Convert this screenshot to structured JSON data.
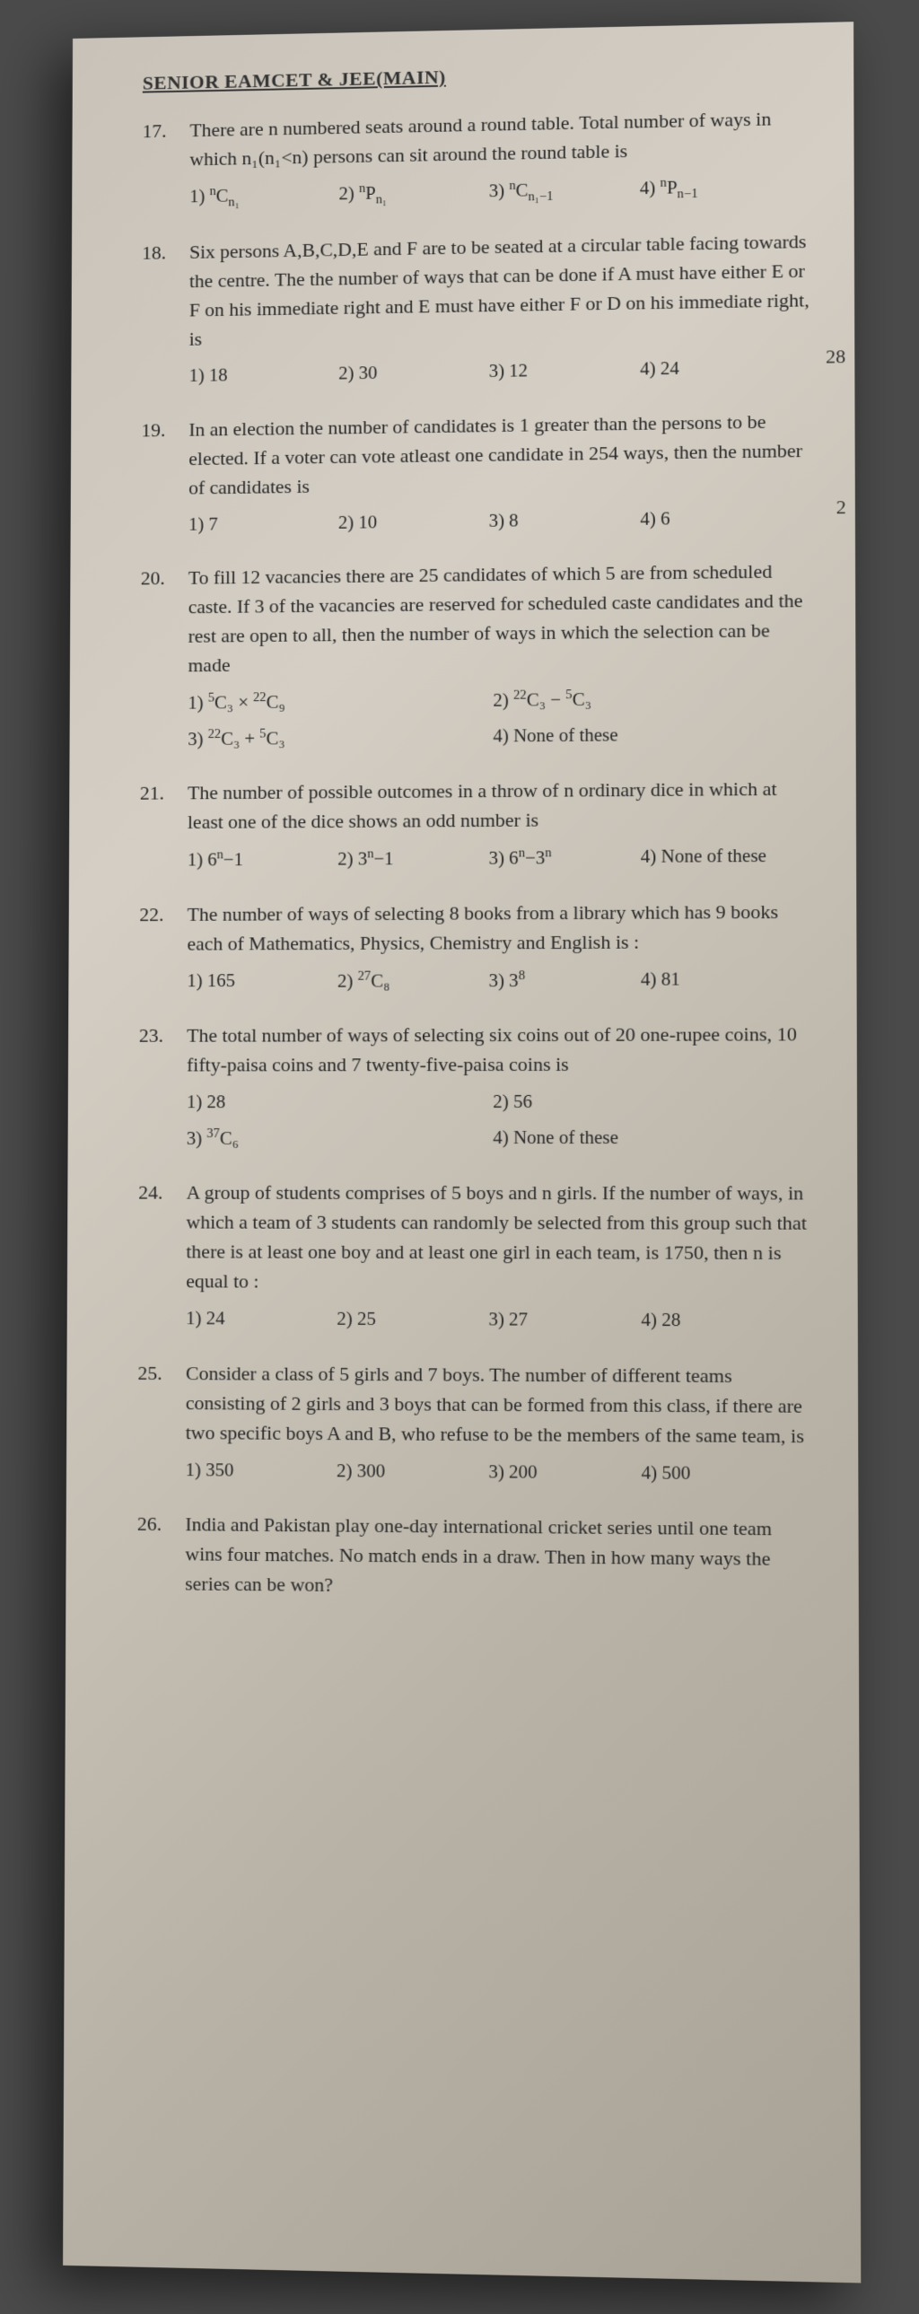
{
  "header": "SENIOR EAMCET & JEE(MAIN)",
  "questions": [
    {
      "num": "17.",
      "text": "There are n numbered seats around a round table. Total number of ways in which n₁(n₁<n) persons can sit around the round table is",
      "options": [
        {
          "n": "1)",
          "v": "<sup>n</sup>C<sub>n₁</sub>"
        },
        {
          "n": "2)",
          "v": "<sup>n</sup>P<sub>n₁</sub>"
        },
        {
          "n": "3)",
          "v": "<sup>n</sup>C<sub>n₁−1</sub>"
        },
        {
          "n": "4)",
          "v": "<sup>n</sup>P<sub>n−1</sub>"
        }
      ],
      "layout": "four-col"
    },
    {
      "num": "18.",
      "text": "Six persons A,B,C,D,E and F are to be seated at a circular table facing towards the centre. The the number of ways that can be done if A must have either E or F on his immediate right and E must have either F or D on his immediate right, is",
      "options": [
        {
          "n": "1)",
          "v": "18"
        },
        {
          "n": "2)",
          "v": "30"
        },
        {
          "n": "3)",
          "v": "12"
        },
        {
          "n": "4)",
          "v": "24"
        }
      ],
      "layout": "four-col",
      "side": "28"
    },
    {
      "num": "19.",
      "text": "In an election the number of candidates is 1 greater than the persons to be elected. If a voter can vote atleast one candidate in 254 ways, then the number of candidates is",
      "options": [
        {
          "n": "1)",
          "v": "7"
        },
        {
          "n": "2)",
          "v": "10"
        },
        {
          "n": "3)",
          "v": "8"
        },
        {
          "n": "4)",
          "v": "6"
        }
      ],
      "layout": "four-col",
      "side": "2"
    },
    {
      "num": "20.",
      "text": "To fill 12 vacancies there are 25 candidates of which 5 are from scheduled caste. If 3 of the vacancies are reserved for scheduled caste candidates and the rest are open to all, then the number of ways in which the selection can be made",
      "options": [
        {
          "n": "1)",
          "v": "<sup>5</sup>C₃ × <sup>22</sup>C₉"
        },
        {
          "n": "2)",
          "v": "<sup>22</sup>C₃ − <sup>5</sup>C₃"
        },
        {
          "n": "3)",
          "v": "<sup>22</sup>C₃ + <sup>5</sup>C₃"
        },
        {
          "n": "4)",
          "v": "None of these"
        }
      ],
      "layout": "two-col"
    },
    {
      "num": "21.",
      "text": "The number of possible outcomes in a throw of n ordinary dice in which at least one of the dice shows an odd number is",
      "options": [
        {
          "n": "1)",
          "v": "6<sup>n</sup>−1"
        },
        {
          "n": "2)",
          "v": "3<sup>n</sup>−1"
        },
        {
          "n": "3)",
          "v": "6<sup>n</sup>−3<sup>n</sup>"
        },
        {
          "n": "4)",
          "v": "None of these"
        }
      ],
      "layout": "four-col"
    },
    {
      "num": "22.",
      "text": "The number of ways of selecting 8 books from a library which has 9 books each of Mathematics, Physics, Chemistry and English is :",
      "options": [
        {
          "n": "1)",
          "v": "165"
        },
        {
          "n": "2)",
          "v": "<sup>27</sup>C₈"
        },
        {
          "n": "3)",
          "v": "3<sup>8</sup>"
        },
        {
          "n": "4)",
          "v": "81"
        }
      ],
      "layout": "four-col"
    },
    {
      "num": "23.",
      "text": "The total number of ways of selecting six coins out of 20 one-rupee coins, 10 fifty-paisa coins and 7 twenty-five-paisa coins is",
      "options": [
        {
          "n": "1)",
          "v": "28"
        },
        {
          "n": "2)",
          "v": "56"
        },
        {
          "n": "3)",
          "v": "<sup>37</sup>C₆"
        },
        {
          "n": "4)",
          "v": "None of these"
        }
      ],
      "layout": "two-col"
    },
    {
      "num": "24.",
      "text": "A group of students comprises of 5 boys and n girls. If the number of ways, in which a team of 3 students can randomly be selected from this group such that there is at least one boy and at least one girl in each team, is 1750, then n is equal to :",
      "options": [
        {
          "n": "1)",
          "v": "24"
        },
        {
          "n": "2)",
          "v": "25"
        },
        {
          "n": "3)",
          "v": "27"
        },
        {
          "n": "4)",
          "v": "28"
        }
      ],
      "layout": "four-col"
    },
    {
      "num": "25.",
      "text": "Consider a class of 5 girls and 7 boys. The number of different teams consisting of 2 girls and 3 boys that can be formed from this class, if there are two specific boys A and B, who refuse to be the members of the same team, is",
      "options": [
        {
          "n": "1)",
          "v": "350"
        },
        {
          "n": "2)",
          "v": "300"
        },
        {
          "n": "3)",
          "v": "200"
        },
        {
          "n": "4)",
          "v": "500"
        }
      ],
      "layout": "four-col"
    },
    {
      "num": "26.",
      "text": "India and Pakistan play one-day international cricket series until one team wins four matches. No match ends in a draw. Then in how many ways the series can be won?",
      "options": [],
      "layout": "four-col"
    }
  ]
}
